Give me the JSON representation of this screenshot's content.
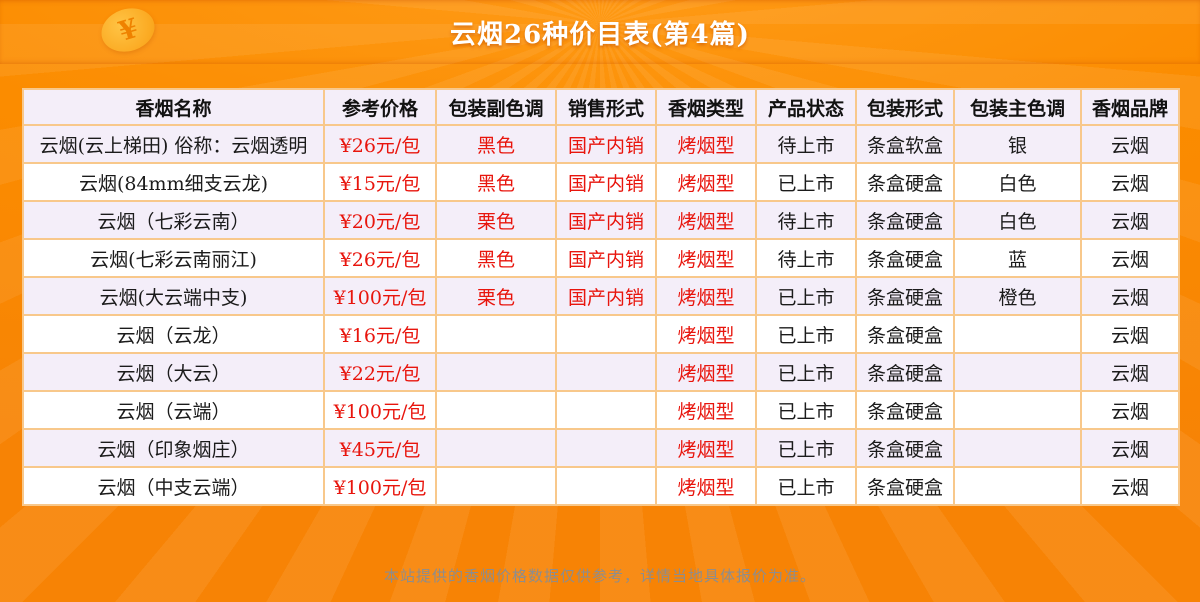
{
  "page": {
    "title": "云烟26种价目表(第4篇)",
    "footer": "本站提供的香烟价格数据仅供参考，详情当地具体报价为准。"
  },
  "icons": {
    "coin_symbol": "¥"
  },
  "colors": {
    "background_orange": "#fb8c00",
    "table_border": "#f8c88b",
    "row_alt_lavender": "#f4eef9",
    "highlight_red": "#e8150d",
    "text_black": "#1b1b1b",
    "footer_gray": "#8d8d8d",
    "coin_yellow": "#fbaa22",
    "title_white": "#ffffff"
  },
  "table": {
    "headers": [
      "香烟名称",
      "参考价格",
      "包装副色调",
      "销售形式",
      "香烟类型",
      "产品状态",
      "包装形式",
      "包装主色调",
      "香烟品牌"
    ],
    "col_keys": [
      "name",
      "price",
      "secondary-color",
      "sales-form",
      "cigarette-type",
      "product-status",
      "package-form",
      "main-color",
      "brand"
    ],
    "red_columns": [
      1,
      2,
      3,
      4
    ],
    "rows": [
      [
        "云烟(云上梯田) 俗称：云烟透明",
        "¥26元/包",
        "黑色",
        "国产内销",
        "烤烟型",
        "待上市",
        "条盒软盒",
        "银",
        "云烟"
      ],
      [
        "云烟(84mm细支云龙)",
        "¥15元/包",
        "黑色",
        "国产内销",
        "烤烟型",
        "已上市",
        "条盒硬盒",
        "白色",
        "云烟"
      ],
      [
        "云烟（七彩云南）",
        "¥20元/包",
        "栗色",
        "国产内销",
        "烤烟型",
        "待上市",
        "条盒硬盒",
        "白色",
        "云烟"
      ],
      [
        "云烟(七彩云南丽江)",
        "¥26元/包",
        "黑色",
        "国产内销",
        "烤烟型",
        "待上市",
        "条盒硬盒",
        "蓝",
        "云烟"
      ],
      [
        "云烟(大云端中支)",
        "¥100元/包",
        "栗色",
        "国产内销",
        "烤烟型",
        "已上市",
        "条盒硬盒",
        "橙色",
        "云烟"
      ],
      [
        "云烟（云龙）",
        "¥16元/包",
        "",
        "",
        "烤烟型",
        "已上市",
        "条盒硬盒",
        "",
        "云烟"
      ],
      [
        "云烟（大云）",
        "¥22元/包",
        "",
        "",
        "烤烟型",
        "已上市",
        "条盒硬盒",
        "",
        "云烟"
      ],
      [
        "云烟（云端）",
        "¥100元/包",
        "",
        "",
        "烤烟型",
        "已上市",
        "条盒硬盒",
        "",
        "云烟"
      ],
      [
        "云烟（印象烟庄）",
        "¥45元/包",
        "",
        "",
        "烤烟型",
        "已上市",
        "条盒硬盒",
        "",
        "云烟"
      ],
      [
        "云烟（中支云端）",
        "¥100元/包",
        "",
        "",
        "烤烟型",
        "已上市",
        "条盒硬盒",
        "",
        "云烟"
      ]
    ]
  }
}
